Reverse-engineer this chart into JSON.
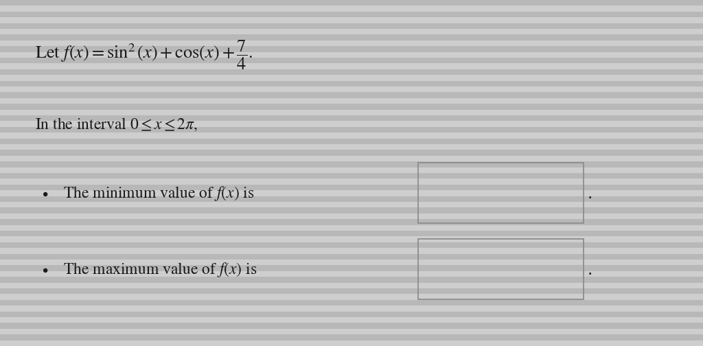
{
  "background_color": "#c5c5c5",
  "stripe_light": "#cecece",
  "stripe_dark": "#b8b8b8",
  "text_color": "#1a1a1a",
  "line1_plain": "Let ",
  "line1_math": "$f(x) = \\sin^2(x) + \\cos(x) + \\dfrac{7}{4}.$",
  "line2_plain": "In the interval ",
  "line2_math": "$0 \\leq x \\leq 2\\pi,$",
  "bullet1_plain": "The minimum value of ",
  "bullet1_math": "$f(x)$",
  "bullet1_end": " is",
  "bullet2_plain": "The maximum value of ",
  "bullet2_math": "$f(x)$",
  "bullet2_end": " is",
  "box_facecolor": "none",
  "box_edgecolor": "#888888",
  "figsize": [
    10.24,
    5.04
  ],
  "dpi": 100,
  "stripe_count": 60,
  "font_size_main": 19,
  "font_size_sub": 17
}
